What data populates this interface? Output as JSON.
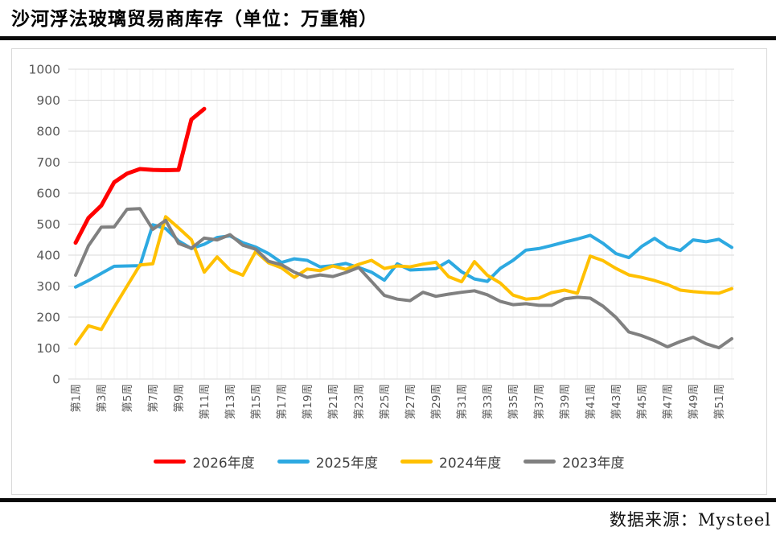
{
  "page": {
    "title": "沙河浮法玻璃贸易商库存（单位：万重箱）",
    "source_note": "数据来源：Mysteel"
  },
  "chart_data": {
    "type": "line",
    "title": "沙河浮法玻璃贸易商库存",
    "unit": "万重箱",
    "weeks": 52,
    "xlabel": "",
    "ylabel": "",
    "ylim": [
      0,
      1000
    ],
    "y_ticks": [
      0,
      100,
      200,
      300,
      400,
      500,
      600,
      700,
      800,
      900,
      1000
    ],
    "x_tick_labels": [
      "第1周",
      "第3周",
      "第5周",
      "第7周",
      "第9周",
      "第11周",
      "第13周",
      "第15周",
      "第17周",
      "第19周",
      "第21周",
      "第23周",
      "第25周",
      "第27周",
      "第29周",
      "第31周",
      "第33周",
      "第35周",
      "第37周",
      "第39周",
      "第41周",
      "第43周",
      "第45周",
      "第47周",
      "第49周",
      "第51周"
    ],
    "grid": "horizontal-major, faint weekly verticals",
    "legend_position": "bottom",
    "colors": {
      "grid_major": "#d9d9d9",
      "grid_minor": "#f2f2f2",
      "axis_text": "#595959",
      "legend_text": "#404040"
    },
    "series": [
      {
        "name": "2026年度",
        "color": "#ff0000",
        "stroke_width": 5,
        "values": [
          440,
          520,
          560,
          635,
          663,
          678,
          675,
          674,
          675,
          838,
          872
        ]
      },
      {
        "name": "2025年度",
        "color": "#2da9e1",
        "stroke_width": 4,
        "values": [
          297,
          318,
          341,
          364,
          365,
          366,
          498,
          486,
          446,
          421,
          435,
          457,
          462,
          440,
          426,
          405,
          376,
          388,
          383,
          362,
          366,
          373,
          360,
          345,
          319,
          372,
          352,
          354,
          356,
          381,
          346,
          323,
          315,
          357,
          383,
          416,
          421,
          431,
          442,
          452,
          464,
          438,
          405,
          392,
          428,
          454,
          426,
          415,
          449,
          443,
          451,
          425
        ]
      },
      {
        "name": "2024年度",
        "color": "#ffc000",
        "stroke_width": 4,
        "values": [
          113,
          172,
          160,
          232,
          300,
          368,
          372,
          524,
          488,
          450,
          345,
          394,
          352,
          335,
          412,
          375,
          359,
          328,
          355,
          350,
          365,
          354,
          370,
          383,
          357,
          365,
          362,
          371,
          377,
          330,
          314,
          379,
          335,
          310,
          271,
          258,
          261,
          279,
          287,
          277,
          397,
          382,
          357,
          336,
          328,
          318,
          305,
          287,
          282,
          279,
          277,
          292
        ]
      },
      {
        "name": "2023年度",
        "color": "#808080",
        "stroke_width": 4,
        "values": [
          335,
          430,
          490,
          491,
          548,
          550,
          483,
          512,
          438,
          422,
          455,
          449,
          466,
          432,
          419,
          380,
          369,
          345,
          328,
          336,
          331,
          344,
          360,
          315,
          270,
          258,
          253,
          280,
          267,
          274,
          280,
          285,
          272,
          251,
          240,
          243,
          238,
          238,
          259,
          264,
          261,
          235,
          199,
          152,
          140,
          124,
          104,
          121,
          135,
          114,
          101,
          130
        ]
      }
    ]
  }
}
